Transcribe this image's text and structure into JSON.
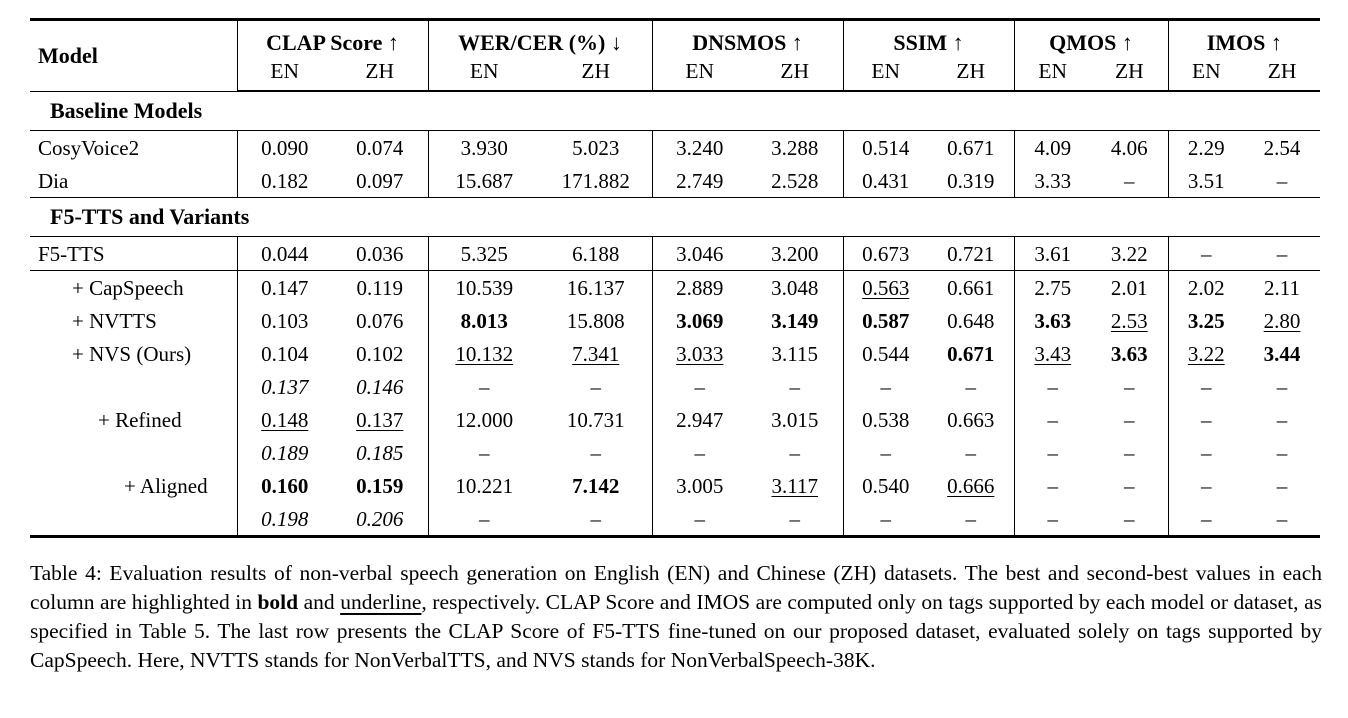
{
  "page": {
    "background": "#ffffff",
    "text_color": "#000000",
    "rule_color": "#000000"
  },
  "table": {
    "header": {
      "model": "Model",
      "groups": [
        "CLAP Score ↑",
        "WER/CER (%) ↓",
        "DNSMOS ↑",
        "SSIM ↑",
        "QMOS ↑",
        "IMOS ↑"
      ],
      "subcolumns": [
        "EN",
        "ZH"
      ]
    },
    "sections": [
      {
        "title": "Baseline Models",
        "rows": [
          {
            "model": "CosyVoice2",
            "indent": 0,
            "cells": [
              "0.090",
              "0.074",
              "3.930",
              "5.023",
              "3.240",
              "3.288",
              "0.514",
              "0.671",
              "4.09",
              "4.06",
              "2.29",
              "2.54"
            ]
          },
          {
            "model": "Dia",
            "indent": 0,
            "cells": [
              "0.182",
              "0.097",
              "15.687",
              "171.882",
              "2.749",
              "2.528",
              "0.431",
              "0.319",
              "3.33",
              "–",
              "3.51",
              "–"
            ]
          }
        ]
      },
      {
        "title": "F5-TTS and Variants",
        "rows": [
          {
            "model": "F5-TTS",
            "indent": 0,
            "rule_after": true,
            "cells": [
              "0.044",
              "0.036",
              "5.325",
              "6.188",
              "3.046",
              "3.200",
              "0.673",
              "0.721",
              "3.61",
              "3.22",
              "–",
              "–"
            ]
          },
          {
            "model": "+ CapSpeech",
            "indent": 1,
            "cells": [
              "0.147",
              "0.119",
              "10.539",
              "16.137",
              "2.889",
              "3.048",
              {
                "v": "0.563",
                "s": "underline"
              },
              "0.661",
              "2.75",
              "2.01",
              "2.02",
              "2.11"
            ]
          },
          {
            "model": "+ NVTTS",
            "indent": 1,
            "cells": [
              "0.103",
              "0.076",
              {
                "v": "8.013",
                "s": "bold"
              },
              "15.808",
              {
                "v": "3.069",
                "s": "bold"
              },
              {
                "v": "3.149",
                "s": "bold"
              },
              {
                "v": "0.587",
                "s": "bold"
              },
              "0.648",
              {
                "v": "3.63",
                "s": "bold"
              },
              {
                "v": "2.53",
                "s": "underline"
              },
              {
                "v": "3.25",
                "s": "bold"
              },
              {
                "v": "2.80",
                "s": "underline"
              }
            ]
          },
          {
            "model": "+ NVS (Ours)",
            "indent": 1,
            "cells": [
              "0.104",
              "0.102",
              {
                "v": "10.132",
                "s": "underline"
              },
              {
                "v": "7.341",
                "s": "underline"
              },
              {
                "v": "3.033",
                "s": "underline"
              },
              "3.115",
              "0.544",
              {
                "v": "0.671",
                "s": "bold"
              },
              {
                "v": "3.43",
                "s": "underline"
              },
              {
                "v": "3.63",
                "s": "bold"
              },
              {
                "v": "3.22",
                "s": "underline"
              },
              {
                "v": "3.44",
                "s": "bold"
              }
            ]
          },
          {
            "model": "",
            "indent": 0,
            "cells": [
              {
                "v": "0.137",
                "s": "italic"
              },
              {
                "v": "0.146",
                "s": "italic"
              },
              "–",
              "–",
              "–",
              "–",
              "–",
              "–",
              "–",
              "–",
              "–",
              "–"
            ]
          },
          {
            "model": "+ Refined",
            "indent": 2,
            "cells": [
              {
                "v": "0.148",
                "s": "underline"
              },
              {
                "v": "0.137",
                "s": "underline"
              },
              "12.000",
              "10.731",
              "2.947",
              "3.015",
              "0.538",
              "0.663",
              "–",
              "–",
              "–",
              "–"
            ]
          },
          {
            "model": "",
            "indent": 0,
            "cells": [
              {
                "v": "0.189",
                "s": "italic"
              },
              {
                "v": "0.185",
                "s": "italic"
              },
              "–",
              "–",
              "–",
              "–",
              "–",
              "–",
              "–",
              "–",
              "–",
              "–"
            ]
          },
          {
            "model": "+ Aligned",
            "indent": 3,
            "cells": [
              {
                "v": "0.160",
                "s": "bold"
              },
              {
                "v": "0.159",
                "s": "bold"
              },
              "10.221",
              {
                "v": "7.142",
                "s": "bold"
              },
              "3.005",
              {
                "v": "3.117",
                "s": "underline"
              },
              "0.540",
              {
                "v": "0.666",
                "s": "underline"
              },
              "–",
              "–",
              "–",
              "–"
            ]
          },
          {
            "model": "",
            "indent": 0,
            "cells": [
              {
                "v": "0.198",
                "s": "italic"
              },
              {
                "v": "0.206",
                "s": "italic"
              },
              "–",
              "–",
              "–",
              "–",
              "–",
              "–",
              "–",
              "–",
              "–",
              "–"
            ]
          }
        ]
      }
    ]
  },
  "caption": {
    "segments": [
      {
        "t": "Table 4: Evaluation results of non-verbal speech generation on English (EN) and Chinese (ZH) datasets. The best and second-best values in each column are highlighted in "
      },
      {
        "t": "bold",
        "s": "bold"
      },
      {
        "t": " and "
      },
      {
        "t": "underline",
        "s": "underline"
      },
      {
        "t": ", respectively. CLAP Score and IMOS are computed only on tags supported by each model or dataset, as specified in Table 5. The last row presents the CLAP Score of F5-TTS fine-tuned on our proposed dataset, evaluated solely on tags supported by CapSpeech. Here, NVTTS stands for NonVerbalTTS, and NVS stands for NonVerbalSpeech-38K."
      }
    ]
  }
}
